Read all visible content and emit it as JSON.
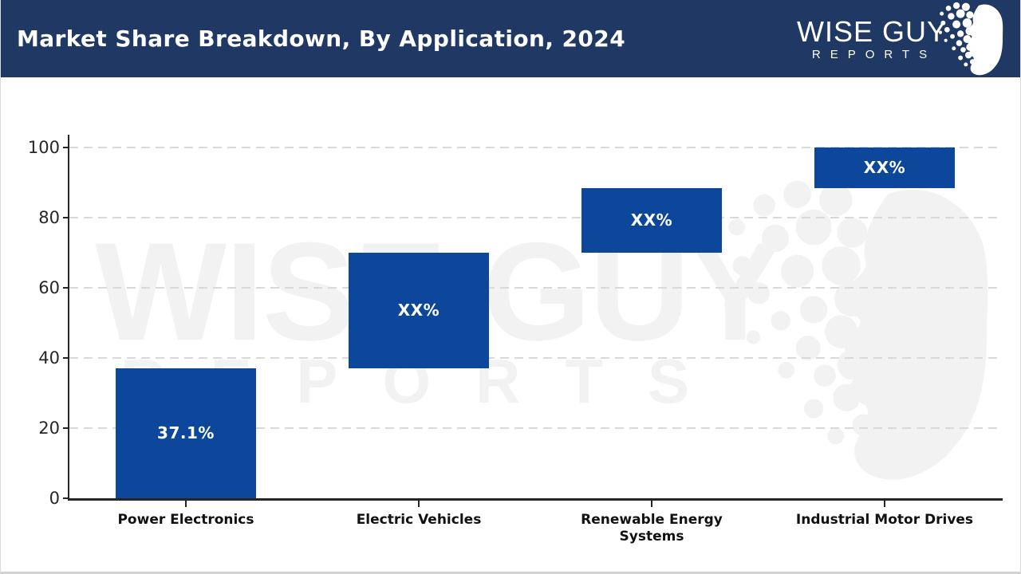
{
  "header": {
    "title": "Market Share Breakdown, By Application, 2024",
    "logo": {
      "line1": "WISE GUY",
      "line2": "REPORTS"
    }
  },
  "watermark": {
    "line1": "WISE GUY",
    "line2": "REPORTS"
  },
  "colors": {
    "header_bg": "#1f3864",
    "header_text": "#ffffff",
    "bar": "#0d479b",
    "bar_label": "#ffffff",
    "grid": "#d9d9d9",
    "axis": "#262626",
    "tick_label": "#262626",
    "category_label": "#111111",
    "watermark": "#f2f2f3"
  },
  "chart_data": {
    "type": "bar",
    "subtype": "floating-waterfall",
    "title": "Market Share Breakdown, By Application, 2024",
    "categories": [
      "Power Electronics",
      "Electric Vehicles",
      "Renewable Energy Systems",
      "Industrial Motor Drives"
    ],
    "series": [
      {
        "name": "Market Share",
        "segments": [
          {
            "start": 0,
            "end": 37.1,
            "label": "37.1%"
          },
          {
            "start": 37.1,
            "end": 70,
            "label": "XX%"
          },
          {
            "start": 70,
            "end": 88.5,
            "label": "XX%"
          },
          {
            "start": 88.5,
            "end": 100,
            "label": "XX%"
          }
        ]
      }
    ],
    "xlabel": "",
    "ylabel": "",
    "ylim": [
      0,
      100
    ],
    "yticks": [
      0,
      20,
      40,
      60,
      80,
      100
    ],
    "grid": "dashed-horizontal",
    "legend": "none"
  }
}
